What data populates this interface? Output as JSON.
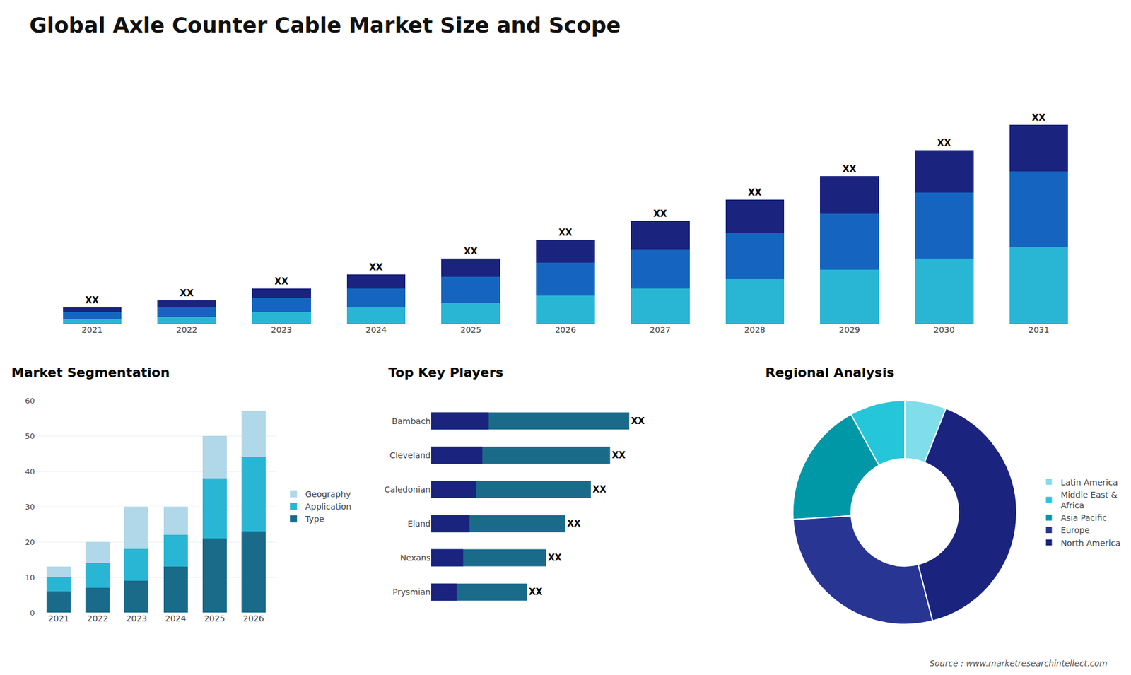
{
  "title": "Global Axle Counter Cable Market Size and Scope",
  "annotations": [
    "Source : www.marketresearchintellect.com"
  ],
  "chart_data": [
    {
      "type": "bar",
      "stacked": true,
      "categories": [
        "2021",
        "2022",
        "2023",
        "2024",
        "2025",
        "2026",
        "2027",
        "2028",
        "2029",
        "2030",
        "2031"
      ],
      "series": [
        {
          "color": "#29b6d4",
          "values": [
            2,
            3,
            5,
            7,
            9,
            12,
            15,
            19,
            23,
            28,
            33
          ]
        },
        {
          "color": "#1565c0",
          "values": [
            3,
            4,
            6,
            8,
            11,
            14,
            17,
            20,
            24,
            28,
            32
          ]
        },
        {
          "color": "#1a237e",
          "values": [
            2,
            3,
            4,
            6,
            8,
            10,
            12,
            14,
            16,
            18,
            20
          ],
          "value_labels": [
            "XX",
            "XX",
            "XX",
            "XX",
            "XX",
            "XX",
            "XX",
            "XX",
            "XX",
            "XX",
            "XX"
          ]
        }
      ],
      "ylim": [
        0,
        110.5
      ],
      "tick_labels": "x",
      "grid": false
    },
    {
      "type": "bar",
      "title": "Market Segmentation",
      "stacked": true,
      "categories": [
        "2021",
        "2022",
        "2023",
        "2024",
        "2025",
        "2026"
      ],
      "series": [
        {
          "name": "Type",
          "color": "#1a6b8a",
          "values": [
            6,
            7,
            9,
            13,
            21,
            23
          ]
        },
        {
          "name": "Application",
          "color": "#29b6d4",
          "values": [
            4,
            7,
            9,
            9,
            17,
            21
          ]
        },
        {
          "name": "Geography",
          "color": "#b0d8e8",
          "values": [
            3,
            6,
            12,
            8,
            12,
            13
          ]
        }
      ],
      "ylim": [
        0,
        60
      ],
      "yticks": [
        0,
        10,
        20,
        30,
        40,
        50,
        60
      ],
      "grid": true,
      "legend": "right"
    },
    {
      "type": "bar",
      "title": "Top Key Players",
      "orientation": "horizontal",
      "stacked": false,
      "categories": [
        "Bambach",
        "Cleveland",
        "Caledonian",
        "Eland",
        "Nexans",
        "Prysmian"
      ],
      "series": [
        {
          "color": "#1a6b8a",
          "values": [
            62,
            56,
            50,
            42,
            36,
            30
          ],
          "value_labels": [
            "XX",
            "XX",
            "XX",
            "XX",
            "XX",
            "XX"
          ]
        },
        {
          "color": "#1a237e",
          "values": [
            18,
            16,
            14,
            12,
            10,
            8
          ]
        }
      ],
      "xlim": [
        0,
        90
      ],
      "tick_labels": "y",
      "grid": false
    },
    {
      "type": "pie",
      "title": "Regional Analysis",
      "categories": [
        "Latin America",
        "Middle East &\nAfrica",
        "Asia Pacific",
        "Europe",
        "North America"
      ],
      "values": [
        6,
        8,
        18,
        28,
        40
      ],
      "colors": [
        "#80deea",
        "#26c6da",
        "#0097a7",
        "#283593",
        "#1a237e"
      ],
      "legend": "right"
    }
  ]
}
